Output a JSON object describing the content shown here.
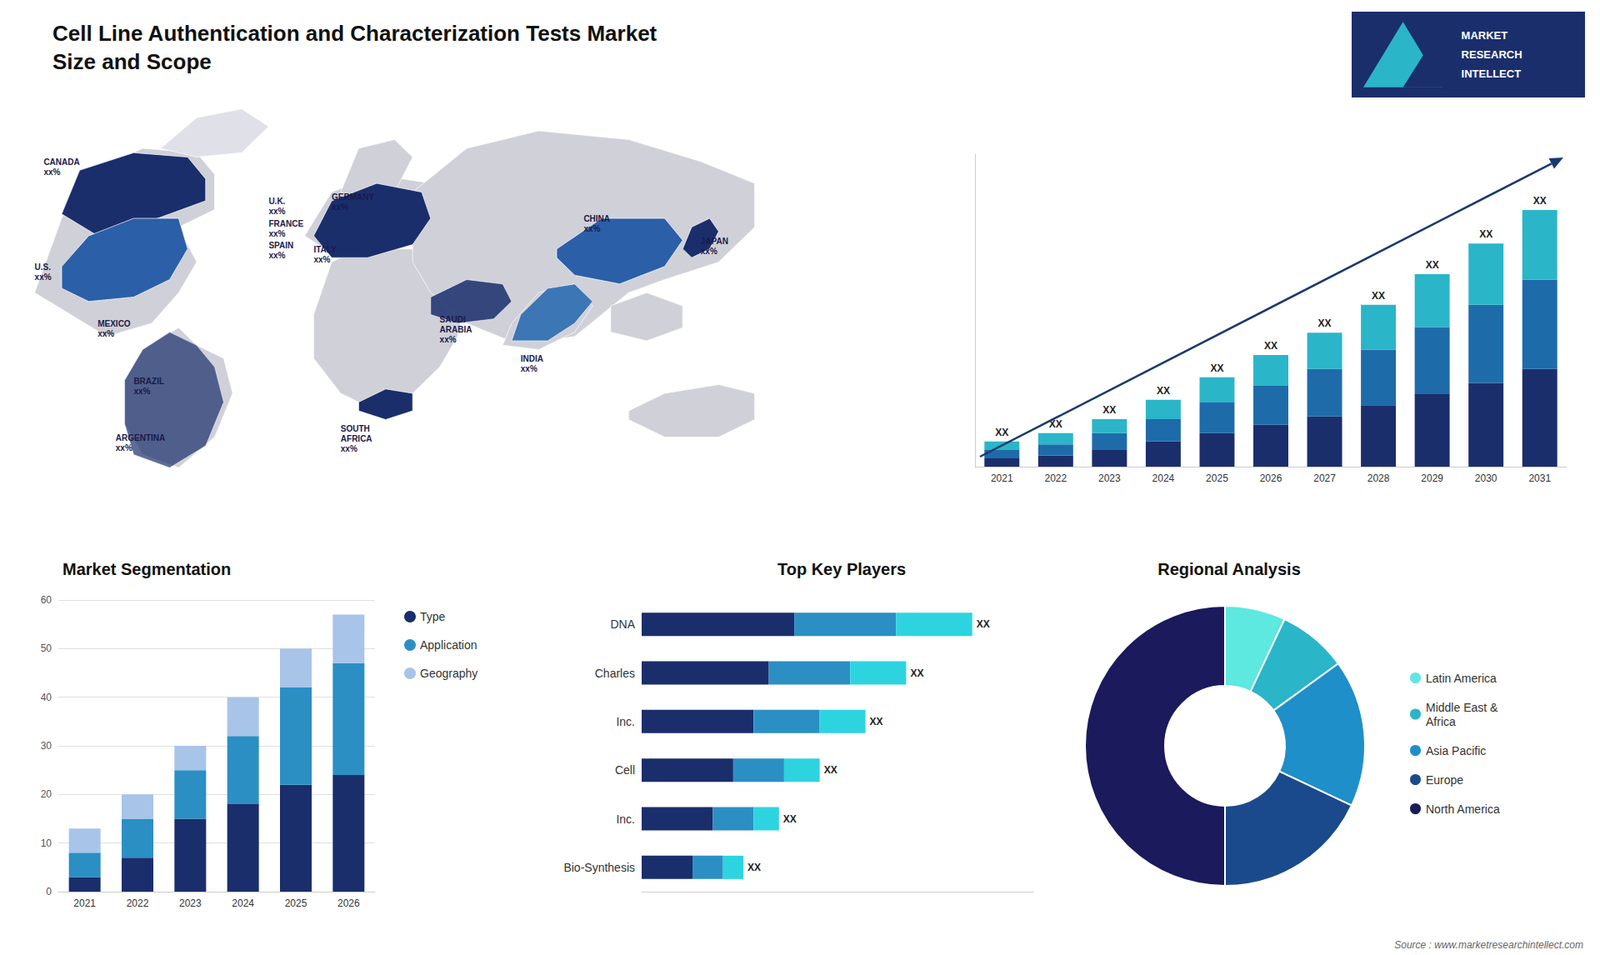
{
  "title": "Cell Line Authentication and Characterization Tests Market\nSize and Scope",
  "annotations": [
    "MARKET",
    "RESEARCH",
    "INTELLECT",
    "Source : www.marketresearchintellect.com"
  ],
  "chart_data": [
    {
      "type": "map",
      "annotations": [
        "CANADA\nxx%",
        "U.S.\nxx%",
        "MEXICO\nxx%",
        "BRAZIL\nxx%",
        "ARGENTINA\nxx%",
        "U.K.\nxx%",
        "FRANCE\nxx%",
        "SPAIN\nxx%",
        "GERMANY\nxx%",
        "ITALY\nxx%",
        "SAUDI\nARABIA\nxx%",
        "SOUTH\nAFRICA\nxx%",
        "CHINA\nxx%",
        "INDIA\nxx%",
        "JAPAN\nxx%"
      ]
    },
    {
      "type": "bar",
      "stacked": true,
      "categories": [
        "2021",
        "2022",
        "2023",
        "2024",
        "2025",
        "2026",
        "2027",
        "2028",
        "2029",
        "2030",
        "2031"
      ],
      "series": [
        {
          "color": "#1a2e6c",
          "values": [
            3,
            4,
            6,
            9,
            12,
            15,
            18,
            22,
            26,
            30,
            35
          ]
        },
        {
          "color": "#1e6baa",
          "values": [
            3,
            4,
            6,
            8,
            11,
            14,
            17,
            20,
            24,
            28,
            32
          ]
        },
        {
          "color": "#2bb5c8",
          "values": [
            3,
            4,
            5,
            7,
            9,
            11,
            13,
            16,
            19,
            22,
            25
          ],
          "value_labels": [
            "XX",
            "XX",
            "XX",
            "XX",
            "XX",
            "XX",
            "XX",
            "XX",
            "XX",
            "XX",
            "XX"
          ]
        }
      ],
      "ylim": [
        0,
        112
      ],
      "tick_labels": "x",
      "grid": false
    },
    {
      "type": "bar",
      "title": "Market Segmentation",
      "stacked": true,
      "categories": [
        "2021",
        "2022",
        "2023",
        "2024",
        "2025",
        "2026"
      ],
      "series": [
        {
          "name": "Type",
          "color": "#1a2e6c",
          "values": [
            3,
            7,
            15,
            18,
            22,
            24
          ]
        },
        {
          "name": "Application",
          "color": "#2b8fc4",
          "values": [
            5,
            8,
            10,
            14,
            20,
            23
          ]
        },
        {
          "name": "Geography",
          "color": "#a8c4e8",
          "values": [
            5,
            5,
            5,
            8,
            8,
            10
          ]
        }
      ],
      "ylim": [
        0,
        60
      ],
      "yticks": [
        0,
        10,
        20,
        30,
        40,
        50,
        60
      ],
      "grid": true,
      "legend": "right"
    },
    {
      "type": "bar",
      "title": "Top Key Players",
      "orientation": "horizontal",
      "stacked": true,
      "categories": [
        "DNA",
        "Charles",
        "Inc.",
        "Cell",
        "Inc.",
        "Bio-Synthesis"
      ],
      "series": [
        {
          "color": "#1a2e6c",
          "values": [
            30,
            25,
            22,
            18,
            14,
            10
          ]
        },
        {
          "color": "#2b8fc4",
          "values": [
            20,
            16,
            13,
            10,
            8,
            6
          ]
        },
        {
          "color": "#2dd4e0",
          "values": [
            15,
            11,
            9,
            7,
            5,
            4
          ],
          "value_labels": [
            "XX",
            "XX",
            "XX",
            "XX",
            "XX",
            "XX"
          ]
        }
      ],
      "xlim": [
        0,
        77
      ],
      "tick_labels": "y",
      "grid": false
    },
    {
      "type": "pie",
      "title": "Regional Analysis",
      "categories": [
        "Latin America",
        "Middle East &\nAfrica",
        "Asia Pacific",
        "Europe",
        "North America"
      ],
      "values": [
        7,
        8,
        17,
        18,
        50
      ],
      "colors": [
        "#5de8e0",
        "#2bb5c8",
        "#1e8fc8",
        "#1a4a8c",
        "#1a1a5c"
      ],
      "legend": "right"
    }
  ]
}
